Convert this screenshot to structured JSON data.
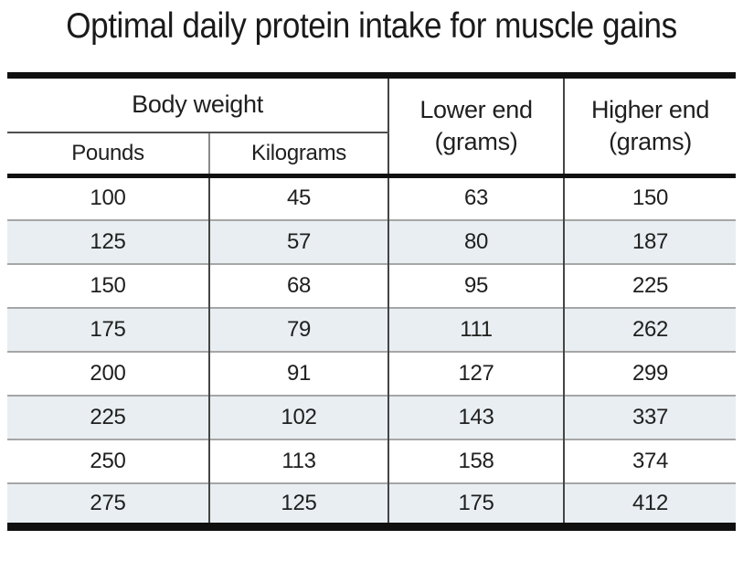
{
  "title": "Optimal daily protein intake for muscle gains",
  "table": {
    "header": {
      "body_weight": "Body weight",
      "pounds": "Pounds",
      "kilograms": "Kilograms",
      "lower_end_line1": "Lower end",
      "lower_end_line2": "(grams)",
      "higher_end_line1": "Higher end",
      "higher_end_line2": "(grams)"
    }
  },
  "chart_data": {
    "type": "table",
    "title": "Optimal daily protein intake for muscle gains",
    "columns": [
      "Body weight (Pounds)",
      "Body weight (Kilograms)",
      "Lower end (grams)",
      "Higher end (grams)"
    ],
    "rows": [
      [
        100,
        45,
        63,
        150
      ],
      [
        125,
        57,
        80,
        187
      ],
      [
        150,
        68,
        95,
        225
      ],
      [
        175,
        79,
        111,
        262
      ],
      [
        200,
        91,
        127,
        299
      ],
      [
        225,
        102,
        143,
        337
      ],
      [
        250,
        113,
        158,
        374
      ],
      [
        275,
        125,
        175,
        412
      ]
    ],
    "layout": {
      "row_shading": "alternate rows shaded starting with second data row",
      "thick_rules": [
        "above header",
        "below header",
        "below last row"
      ]
    }
  },
  "colors": {
    "background": "#ffffff",
    "text": "#1f1f1f",
    "thick_rule": "#101010",
    "column_divider": "#454545",
    "row_separator": "#a6a6a6",
    "row_shade": "#e8eef1"
  }
}
